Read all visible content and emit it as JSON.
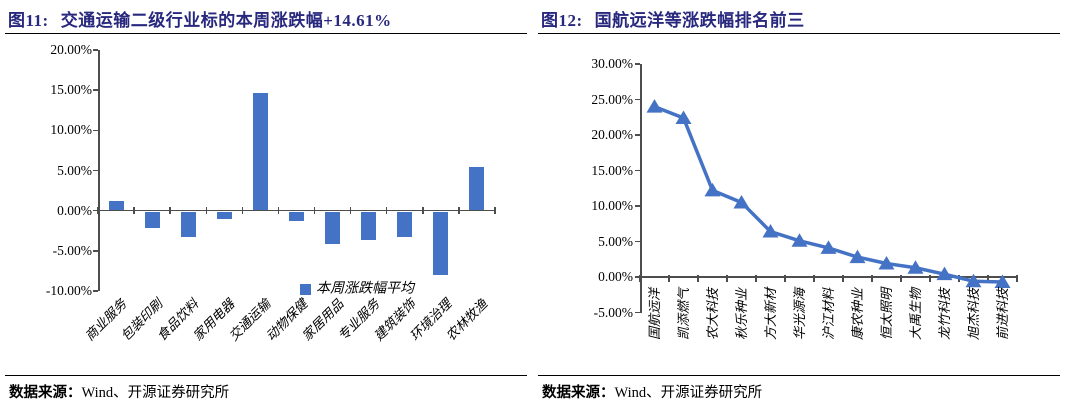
{
  "colors": {
    "accent": "#4472C4",
    "title": "#28287E",
    "axis": "#4d4d4d",
    "text": "#000000"
  },
  "figure_left": {
    "label": "图11:",
    "title": "交通运输二级行业标的本周涨跌幅+14.61%",
    "source_prefix": "数据来源：",
    "source": "Wind、开源证券研究所",
    "chart_data": {
      "type": "bar",
      "title": "交通运输二级行业标的本周涨跌幅+14.61%",
      "series_name": "本周涨跌幅平均",
      "categories": [
        "商业服务",
        "包装印刷",
        "食品饮料",
        "家用电器",
        "交通运输",
        "动物保健",
        "家居用品",
        "专业服务",
        "建筑装饰",
        "环境治理",
        "农林牧渔"
      ],
      "values": [
        1.2,
        -2.0,
        -3.1,
        -0.9,
        14.61,
        -1.1,
        -4.0,
        -3.5,
        -3.1,
        -7.8,
        5.5
      ],
      "ylim": [
        -10,
        20
      ],
      "ytick_step": 5,
      "yticks": [
        "20.00%",
        "15.00%",
        "10.00%",
        "5.00%",
        "0.00%",
        "-5.00%",
        "-10.00%"
      ],
      "bar_color": "#4472C4",
      "grid": false,
      "legend_position": "bottom"
    }
  },
  "figure_right": {
    "label": "图12:",
    "title": "国航远洋等涨跌幅排名前三",
    "source_prefix": "数据来源：",
    "source": "Wind、开源证券研究所",
    "chart_data": {
      "type": "line",
      "title": "国航远洋等涨跌幅排名前三",
      "categories": [
        "国航远洋",
        "凯添燃气",
        "农大科技",
        "秋乐种业",
        "方大新材",
        "华光源海",
        "沪江材料",
        "康农种业",
        "恒太照明",
        "大禹生物",
        "龙竹科技",
        "旭杰科技",
        "前进科技"
      ],
      "values": [
        24.0,
        22.4,
        12.2,
        10.5,
        6.4,
        5.1,
        4.1,
        2.8,
        1.9,
        1.3,
        0.4,
        -0.6,
        -0.7
      ],
      "ylim": [
        -5,
        30
      ],
      "ytick_step": 5,
      "yticks": [
        "30.00%",
        "25.00%",
        "20.00%",
        "15.00%",
        "10.00%",
        "5.00%",
        "0.00%",
        "-5.00%"
      ],
      "line_color": "#4472C4",
      "marker": "triangle",
      "grid": false,
      "legend_position": "none"
    }
  }
}
